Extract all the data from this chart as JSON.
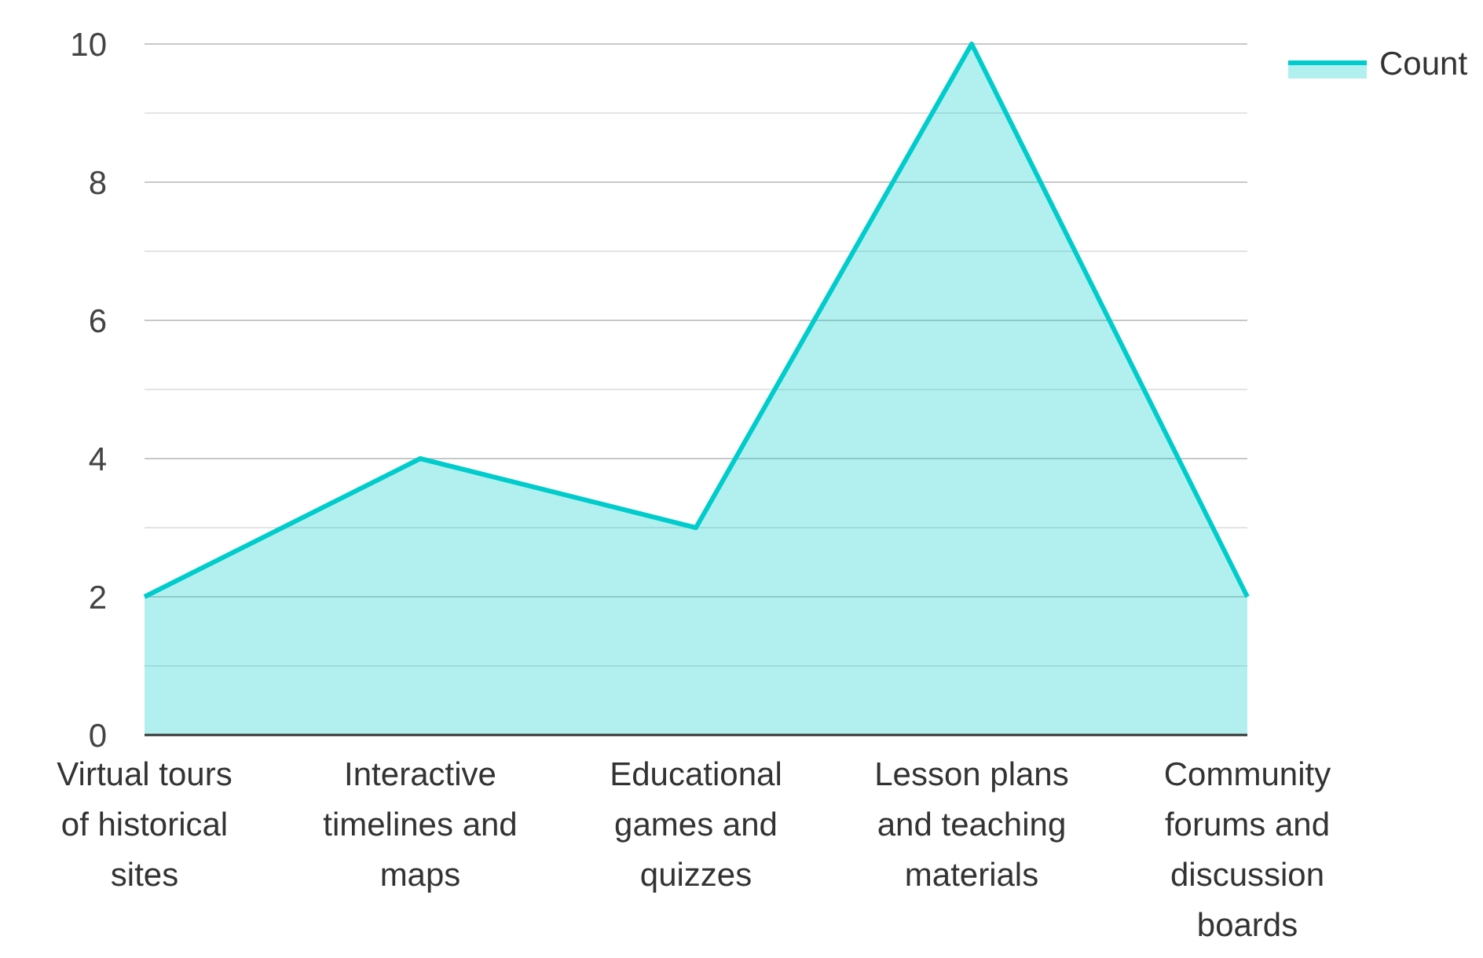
{
  "chart_data": {
    "type": "area",
    "categories": [
      "Virtual tours of historical sites",
      "Interactive timelines and maps",
      "Educational games and quizzes",
      "Lesson plans and teaching materials",
      "Community forums and discussion boards"
    ],
    "series": [
      {
        "name": "Count",
        "color": "#00cccc",
        "values": [
          2,
          4,
          3,
          10,
          2
        ]
      }
    ],
    "ylim": [
      0,
      10
    ],
    "yticks": [
      0,
      {
        "value": 1,
        "label": null
      },
      2,
      {
        "value": 3,
        "label": null
      },
      4,
      {
        "value": 5,
        "label": null
      },
      6,
      {
        "value": 7,
        "label": null
      },
      8,
      {
        "value": 9,
        "label": null
      },
      10
    ],
    "grid": true,
    "legend": "top right"
  }
}
